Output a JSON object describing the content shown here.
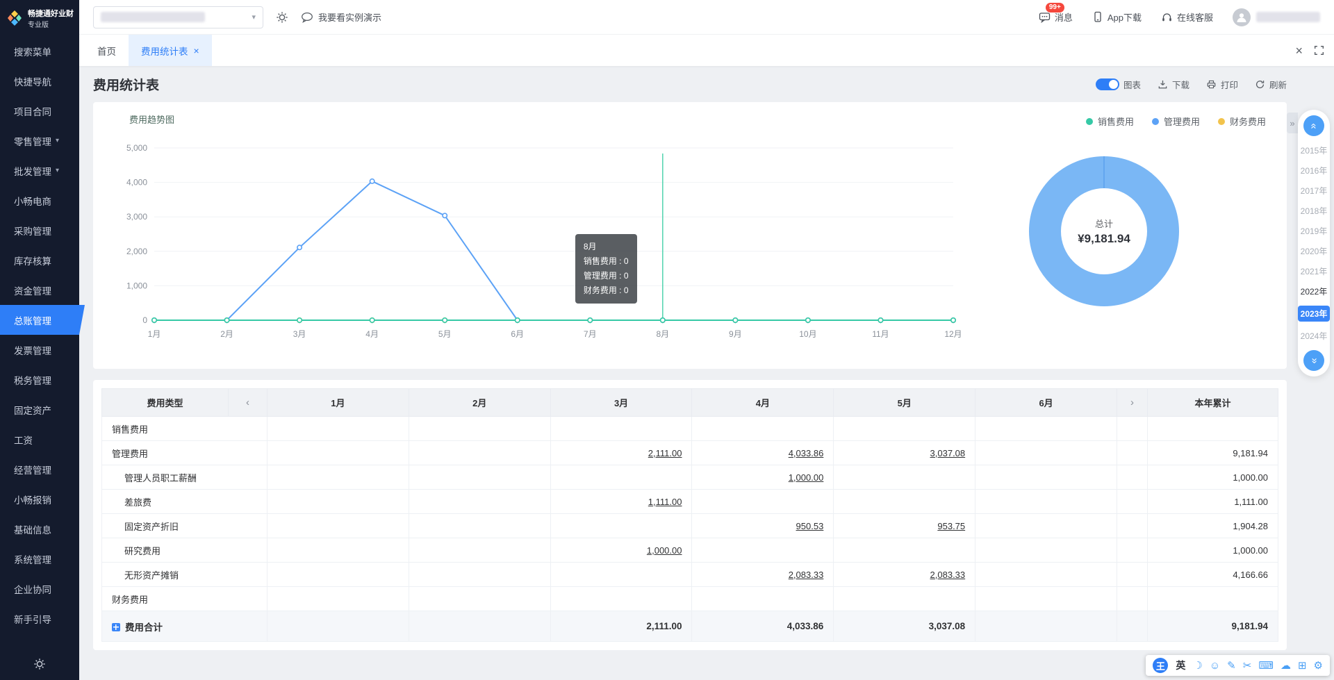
{
  "colors": {
    "accent": "#2e7ef7",
    "sidebar_bg": "#141b2d",
    "series_green": "#35c9a6",
    "series_blue": "#5ca2f6",
    "series_yellow": "#f2c34c",
    "donut_blue": "#7ab7f5",
    "badge_red": "#f5483d"
  },
  "icons": {
    "chevron_down": "▾",
    "select_caret": "▾",
    "collapse_right": "»",
    "prev_month": "‹",
    "next_month": "›",
    "double_up": "«",
    "double_down": "«",
    "close": "×"
  },
  "sidebar": {
    "logo_title": "畅捷通好业财",
    "logo_subtitle": "专业版",
    "items": [
      {
        "label": "搜索菜单"
      },
      {
        "label": "快捷导航"
      },
      {
        "label": "项目合同"
      },
      {
        "label": "零售管理",
        "expandable": true
      },
      {
        "label": "批发管理",
        "expandable": true
      },
      {
        "label": "小畅电商"
      },
      {
        "label": "采购管理"
      },
      {
        "label": "库存核算"
      },
      {
        "label": "资金管理"
      },
      {
        "label": "总账管理",
        "active": true
      },
      {
        "label": "发票管理"
      },
      {
        "label": "税务管理"
      },
      {
        "label": "固定资产"
      },
      {
        "label": "工资"
      },
      {
        "label": "经营管理"
      },
      {
        "label": "小畅报销"
      },
      {
        "label": "基础信息"
      },
      {
        "label": "系统管理"
      },
      {
        "label": "企业协同"
      },
      {
        "label": "新手引导"
      }
    ]
  },
  "topbar": {
    "demo_label": "我要看实例演示",
    "message_label": "消息",
    "message_badge": "99+",
    "app_label": "App下载",
    "service_label": "在线客服"
  },
  "tabs": [
    {
      "label": "首页",
      "active": false,
      "closable": false
    },
    {
      "label": "费用统计表",
      "active": true,
      "closable": true
    }
  ],
  "page": {
    "title": "费用统计表",
    "toggle_label": "图表",
    "toggle_on": true,
    "download_label": "下载",
    "print_label": "打印",
    "refresh_label": "刷新"
  },
  "chart_data": [
    {
      "type": "line",
      "title": "费用趋势图",
      "x": [
        "1月",
        "2月",
        "3月",
        "4月",
        "5月",
        "6月",
        "7月",
        "8月",
        "9月",
        "10月",
        "11月",
        "12月"
      ],
      "series": [
        {
          "name": "销售费用",
          "color": "#35c9a6",
          "values": [
            0,
            0,
            0,
            0,
            0,
            0,
            0,
            0,
            0,
            0,
            0,
            0
          ]
        },
        {
          "name": "管理费用",
          "color": "#5ca2f6",
          "values": [
            0,
            0,
            2111,
            4033.86,
            3037.08,
            0,
            0,
            0,
            0,
            0,
            0,
            0
          ]
        },
        {
          "name": "财务费用",
          "color": "#f2c34c",
          "values": [
            0,
            0,
            0,
            0,
            0,
            0,
            0,
            0,
            0,
            0,
            0,
            0
          ]
        }
      ],
      "ylim": [
        0,
        5000
      ],
      "yticks": [
        0,
        1000,
        2000,
        3000,
        4000,
        5000
      ],
      "ytick_labels": [
        "0",
        "1,000",
        "2,000",
        "3,000",
        "4,000",
        "5,000"
      ],
      "legend_position": "top-right",
      "grid": true,
      "tooltip": {
        "x_index": 7,
        "title": "8月",
        "entries": [
          {
            "label": "销售费用",
            "value": "0"
          },
          {
            "label": "管理费用",
            "value": "0"
          },
          {
            "label": "财务费用",
            "value": "0"
          }
        ]
      }
    },
    {
      "type": "pie",
      "donut": true,
      "center_label": "总计",
      "center_value": "¥9,181.94",
      "slices": [
        {
          "name": "管理费用",
          "value": 9181.94,
          "color": "#7ab7f5"
        }
      ]
    }
  ],
  "year_panel": {
    "years": [
      "2015年",
      "2016年",
      "2017年",
      "2018年",
      "2019年",
      "2020年",
      "2021年",
      "2022年",
      "2023年",
      "2024年"
    ],
    "active": "2023年",
    "emphasis": "2022年"
  },
  "table": {
    "col_type": "费用类型",
    "months": [
      "1月",
      "2月",
      "3月",
      "4月",
      "5月",
      "6月"
    ],
    "total_header": "本年累计",
    "rows": [
      {
        "label": "销售费用",
        "indent": 0,
        "values": [
          "",
          "",
          "",
          "",
          "",
          ""
        ],
        "total": ""
      },
      {
        "label": "管理费用",
        "indent": 0,
        "values": [
          "",
          "",
          "2,111.00",
          "4,033.86",
          "3,037.08",
          ""
        ],
        "total": "9,181.94"
      },
      {
        "label": "管理人员职工薪酬",
        "indent": 1,
        "values": [
          "",
          "",
          "",
          "1,000.00",
          "",
          ""
        ],
        "total": "1,000.00"
      },
      {
        "label": "差旅费",
        "indent": 1,
        "values": [
          "",
          "",
          "1,111.00",
          "",
          "",
          ""
        ],
        "total": "1,111.00"
      },
      {
        "label": "固定资产折旧",
        "indent": 1,
        "values": [
          "",
          "",
          "",
          "950.53",
          "953.75",
          ""
        ],
        "total": "1,904.28"
      },
      {
        "label": "研究费用",
        "indent": 1,
        "values": [
          "",
          "",
          "1,000.00",
          "",
          "",
          ""
        ],
        "total": "1,000.00"
      },
      {
        "label": "无形资产摊销",
        "indent": 1,
        "values": [
          "",
          "",
          "",
          "2,083.33",
          "2,083.33",
          ""
        ],
        "total": "4,166.66"
      },
      {
        "label": "财务费用",
        "indent": 0,
        "values": [
          "",
          "",
          "",
          "",
          "",
          ""
        ],
        "total": ""
      }
    ],
    "footer": {
      "label": "费用合计",
      "values": [
        "",
        "",
        "2,111.00",
        "4,033.86",
        "3,037.08",
        ""
      ],
      "total": "9,181.94"
    }
  },
  "ime": {
    "logo": "王",
    "lang": "英",
    "icons": [
      {
        "name": "moon",
        "glyph": "☽"
      },
      {
        "name": "emoji",
        "glyph": "☺"
      },
      {
        "name": "pen",
        "glyph": "✎"
      },
      {
        "name": "scissors",
        "glyph": "✂"
      },
      {
        "name": "keyboard",
        "glyph": "⌨"
      },
      {
        "name": "cloud",
        "glyph": "☁"
      },
      {
        "name": "grid",
        "glyph": "⊞"
      },
      {
        "name": "gear",
        "glyph": "⚙"
      }
    ]
  }
}
